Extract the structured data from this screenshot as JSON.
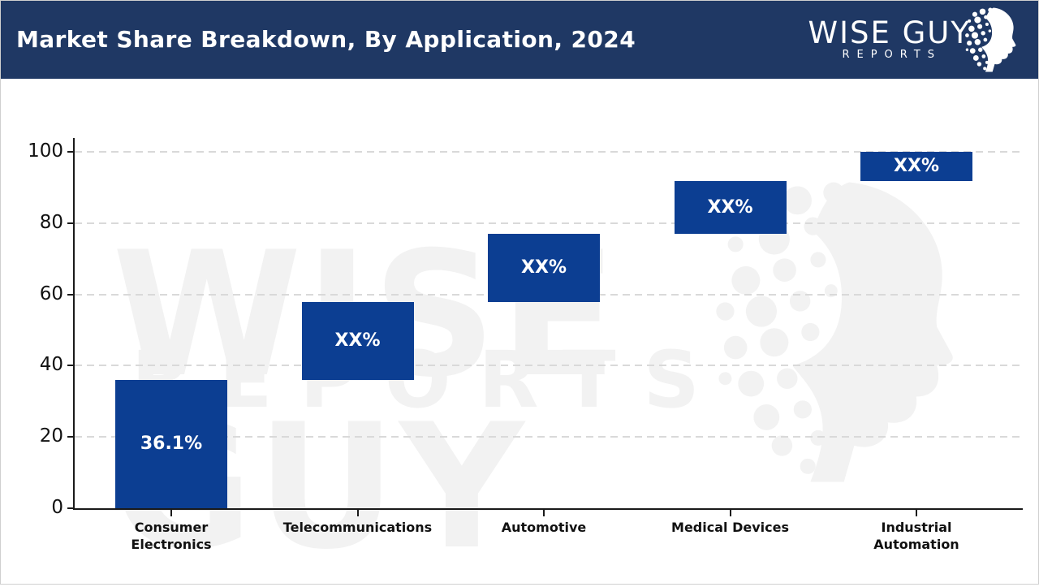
{
  "header": {
    "title": "Market Share Breakdown, By Application, 2024",
    "logo": {
      "line1": "WISE GUY",
      "line2": "REPORTS"
    }
  },
  "watermark": {
    "line1": "WISE GUY",
    "line2": "REPORTS"
  },
  "colors": {
    "header_bg": "#1f3864",
    "bar": "#0c3e92",
    "bar_label": "#ffffff",
    "grid": "#d9d9d9",
    "axis": "#1a1a1a",
    "watermark": "#f2f2f2",
    "title_text": "#ffffff"
  },
  "chart_data": {
    "type": "bar",
    "subtype": "floating-waterfall",
    "title": "Market Share Breakdown, By Application, 2024",
    "xlabel": "",
    "ylabel": "",
    "ylim": [
      0,
      100
    ],
    "yticks": [
      0,
      20,
      40,
      60,
      80,
      100
    ],
    "grid": "horizontal dashed",
    "legend": "none",
    "categories": [
      "Consumer Electronics",
      "Telecommunications",
      "Automotive",
      "Medical Devices",
      "Industrial Automation"
    ],
    "segments": [
      {
        "name": "Consumer Electronics",
        "axis_label": "Consumer\nElectronics",
        "start": 0,
        "end": 36.1,
        "bar_label": "36.1%"
      },
      {
        "name": "Telecommunications",
        "axis_label": "Telecommunications",
        "start": 36.1,
        "end": 57.9,
        "bar_label": "XX%"
      },
      {
        "name": "Automotive",
        "axis_label": "Automotive",
        "start": 57.9,
        "end": 77.0,
        "bar_label": "XX%"
      },
      {
        "name": "Medical Devices",
        "axis_label": "Medical Devices",
        "start": 77.0,
        "end": 91.8,
        "bar_label": "XX%"
      },
      {
        "name": "Industrial Automation",
        "axis_label": "Industrial\nAutomation",
        "start": 91.8,
        "end": 100,
        "bar_label": "XX%"
      }
    ]
  }
}
